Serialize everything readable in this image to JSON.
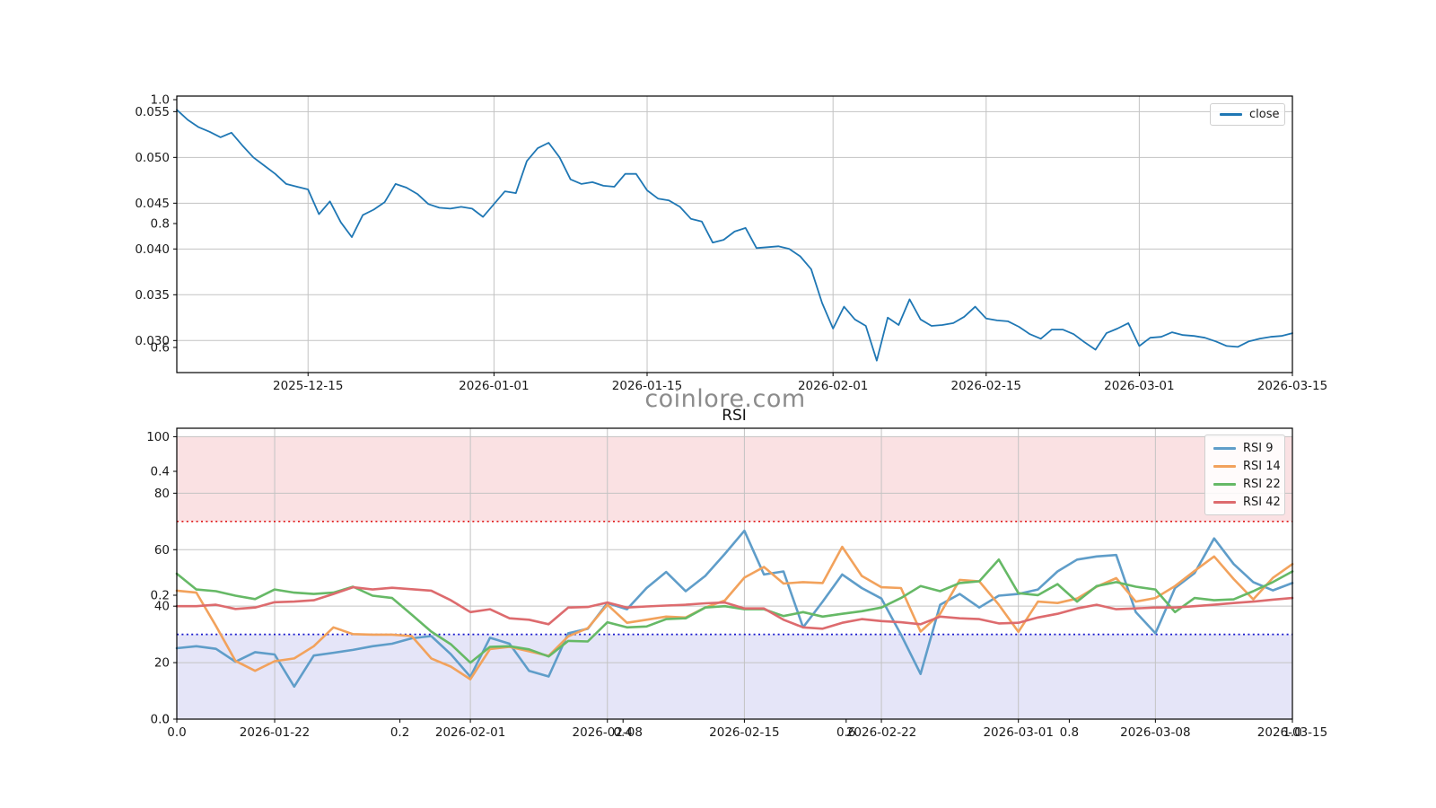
{
  "watermark": {
    "text": "coinlore.com",
    "color": "#8c8c8c"
  },
  "chart_data": [
    {
      "name": "price",
      "type": "line",
      "x_start": "2025-12-03",
      "x_end": "2026-03-15",
      "days_total": 102,
      "ylim": [
        0.0265,
        0.0567
      ],
      "grid": true,
      "legend_position": "upper right",
      "xlabel": "",
      "ylabel": "",
      "y_ticks": [
        {
          "label": "0.055",
          "value": 0.055
        },
        {
          "label": "0.050",
          "value": 0.05
        },
        {
          "label": "0.045",
          "value": 0.045
        },
        {
          "label": "0.040",
          "value": 0.04
        },
        {
          "label": "0.035",
          "value": 0.035
        },
        {
          "label": "0.030",
          "value": 0.03
        }
      ],
      "x_ticks": [
        {
          "label": "2025-12-15",
          "day": 12
        },
        {
          "label": "2026-01-01",
          "day": 29
        },
        {
          "label": "2026-01-15",
          "day": 43
        },
        {
          "label": "2026-02-01",
          "day": 60
        },
        {
          "label": "2026-02-15",
          "day": 74
        },
        {
          "label": "2026-03-01",
          "day": 88
        },
        {
          "label": "2026-03-15",
          "day": 102
        }
      ],
      "series": [
        {
          "name": "close",
          "color": "#1f77b4",
          "width": 1.8,
          "values": [
            0.0552,
            0.0541,
            0.0533,
            0.0528,
            0.0522,
            0.0527,
            0.0513,
            0.05,
            0.0491,
            0.0482,
            0.0471,
            0.0468,
            0.0465,
            0.0438,
            0.0452,
            0.0429,
            0.0413,
            0.0437,
            0.0443,
            0.0451,
            0.0471,
            0.0467,
            0.046,
            0.0449,
            0.0445,
            0.0444,
            0.0446,
            0.0444,
            0.0435,
            0.0449,
            0.0463,
            0.0461,
            0.0496,
            0.051,
            0.0516,
            0.05,
            0.0476,
            0.0471,
            0.0473,
            0.0469,
            0.0468,
            0.0482,
            0.0482,
            0.0464,
            0.0455,
            0.0453,
            0.0446,
            0.0433,
            0.043,
            0.0407,
            0.041,
            0.0419,
            0.0423,
            0.0401,
            0.0402,
            0.0403,
            0.04,
            0.0392,
            0.0378,
            0.0341,
            0.0313,
            0.0337,
            0.0323,
            0.0316,
            0.0278,
            0.0325,
            0.0317,
            0.0345,
            0.0323,
            0.0316,
            0.0317,
            0.0319,
            0.0326,
            0.0337,
            0.0324,
            0.0322,
            0.0321,
            0.0315,
            0.0307,
            0.0302,
            0.0312,
            0.0312,
            0.0307,
            0.0298,
            0.029,
            0.0308,
            0.0313,
            0.0319,
            0.0294,
            0.0303,
            0.0304,
            0.0309,
            0.0306,
            0.0305,
            0.0303,
            0.0299,
            0.0294,
            0.0293,
            0.0299,
            0.0302,
            0.0304,
            0.0305,
            0.0308
          ]
        }
      ]
    },
    {
      "name": "rsi",
      "title": "RSI",
      "type": "line",
      "x_start": "2026-01-17",
      "x_end": "2026-03-15",
      "days_total": 57,
      "ylim": [
        0,
        103
      ],
      "grid": true,
      "legend_position": "upper right",
      "overbought_level": 70,
      "oversold_level": 30,
      "overbought_line_color": "#e01717",
      "oversold_line_color": "#1717cd",
      "overbought_fill": "rgba(220,20,40,0.13)",
      "oversold_fill": "rgba(40,40,200,0.12)",
      "y_ticks": [
        {
          "label": "100",
          "value": 100
        },
        {
          "label": "80",
          "value": 80
        },
        {
          "label": "60",
          "value": 60
        },
        {
          "label": "40",
          "value": 40
        },
        {
          "label": "20",
          "value": 20
        },
        {
          "label": "0",
          "value": 0
        }
      ],
      "x_ticks": [
        {
          "label": "2026-01-22",
          "day": 5
        },
        {
          "label": "2026-02-01",
          "day": 15
        },
        {
          "label": "2026-02-08",
          "day": 22
        },
        {
          "label": "2026-02-15",
          "day": 29
        },
        {
          "label": "2026-02-22",
          "day": 36
        },
        {
          "label": "2026-03-01",
          "day": 43
        },
        {
          "label": "2026-03-08",
          "day": 50
        },
        {
          "label": "2026-03-15",
          "day": 57
        }
      ],
      "series": [
        {
          "name": "RSI 9",
          "color": "#5f9dc9",
          "width": 2.6,
          "values": [
            25.1,
            25.8,
            24.9,
            20.3,
            23.7,
            22.9,
            11.5,
            22.5,
            23.5,
            24.5,
            25.8,
            26.7,
            28.6,
            29.4,
            23.0,
            15.0,
            28.8,
            26.7,
            17.1,
            15.1,
            30.4,
            32.0,
            41.1,
            38.9,
            46.4,
            52.1,
            45.3,
            50.7,
            58.5,
            66.7,
            51.2,
            52.3,
            32.5,
            41.6,
            51.2,
            46.4,
            42.7,
            29.9,
            16.0,
            40.5,
            44.3,
            39.5,
            43.7,
            44.3,
            45.9,
            52.3,
            56.5,
            57.6,
            58.1,
            37.9,
            30.4,
            46.4,
            51.7,
            64.0,
            54.9,
            48.5,
            45.6,
            48.2
          ]
        },
        {
          "name": "RSI 14",
          "color": "#f2a25c",
          "width": 2.6,
          "values": [
            45.5,
            44.8,
            33.0,
            20.6,
            17.1,
            20.5,
            21.5,
            25.8,
            32.5,
            30.1,
            29.9,
            29.9,
            29.4,
            21.5,
            18.6,
            14.1,
            24.8,
            25.6,
            24.0,
            22.4,
            29.3,
            32.2,
            40.5,
            34.1,
            35.2,
            36.3,
            36.0,
            39.5,
            42.0,
            50.1,
            53.9,
            48.0,
            48.5,
            48.2,
            61.0,
            50.7,
            46.7,
            46.4,
            31.0,
            37.3,
            49.3,
            48.8,
            40.5,
            30.9,
            41.6,
            41.1,
            42.7,
            46.9,
            49.9,
            41.6,
            42.9,
            47.1,
            52.5,
            57.6,
            49.6,
            42.4,
            50.0,
            54.9
          ]
        },
        {
          "name": "RSI 22",
          "color": "#66b966",
          "width": 2.6,
          "values": [
            51.5,
            45.9,
            45.3,
            43.7,
            42.5,
            45.9,
            44.8,
            44.3,
            44.8,
            46.9,
            43.7,
            42.9,
            37.0,
            31.0,
            26.5,
            20.0,
            25.6,
            25.8,
            24.7,
            22.2,
            27.7,
            27.5,
            34.3,
            32.5,
            32.8,
            35.4,
            35.7,
            39.5,
            40.0,
            38.9,
            38.9,
            36.5,
            37.9,
            36.3,
            37.3,
            38.2,
            39.5,
            42.9,
            47.1,
            45.3,
            48.2,
            48.8,
            56.5,
            44.6,
            43.9,
            47.8,
            41.6,
            47.1,
            48.5,
            46.9,
            45.9,
            37.9,
            42.9,
            42.1,
            42.4,
            45.3,
            48.5,
            52.3
          ]
        },
        {
          "name": "RSI 42",
          "color": "#dd6b6e",
          "width": 2.6,
          "values": [
            40.0,
            40.0,
            40.5,
            39.0,
            39.5,
            41.4,
            41.6,
            42.1,
            44.3,
            46.7,
            45.9,
            46.5,
            46.0,
            45.5,
            42.1,
            37.9,
            38.9,
            35.7,
            35.2,
            33.6,
            39.5,
            39.7,
            41.3,
            39.5,
            39.9,
            40.2,
            40.5,
            41.0,
            41.3,
            39.2,
            39.2,
            35.2,
            32.5,
            32.0,
            34.1,
            35.4,
            34.7,
            34.3,
            33.6,
            36.3,
            35.7,
            35.4,
            33.9,
            34.1,
            36.0,
            37.3,
            39.2,
            40.5,
            38.9,
            39.2,
            39.5,
            39.5,
            40.0,
            40.5,
            41.1,
            41.6,
            42.3,
            42.9
          ]
        }
      ]
    }
  ],
  "overlay_axis": {
    "y_tick_labels": [
      "1.0",
      "0.8",
      "0.6",
      "0.4",
      "0.2",
      "0.0"
    ],
    "x_tick_labels": [
      "0.0",
      "0.2",
      "0.4",
      "0.6",
      "0.8",
      "1.0"
    ]
  }
}
